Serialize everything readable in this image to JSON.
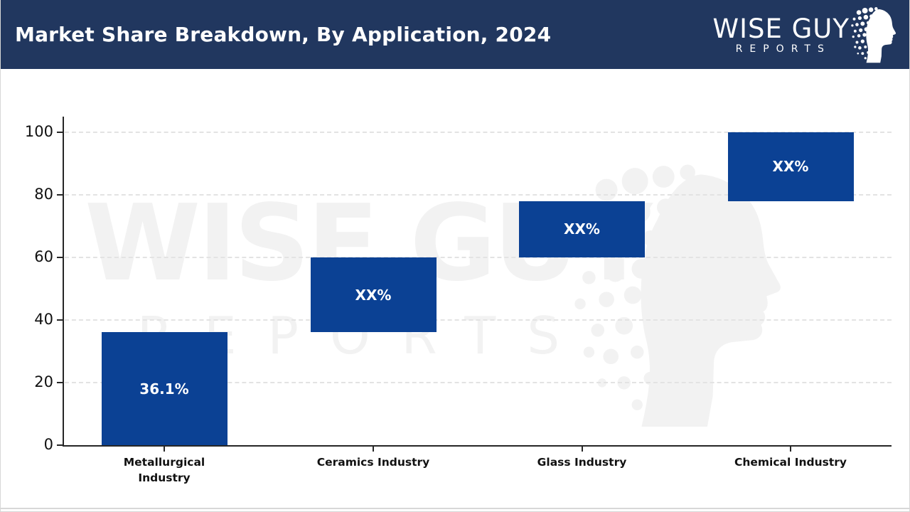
{
  "header": {
    "title": "Market Share Breakdown, By Application, 2024",
    "bg_color": "#21375f",
    "logo": {
      "line1": "WISE GUY",
      "line2": "REPORTS"
    }
  },
  "watermark": {
    "line1": "WISE GUY",
    "line2": "REPORTS"
  },
  "chart_data": {
    "type": "bar",
    "subtype": "waterfall",
    "title": "Market Share Breakdown, By Application, 2024",
    "categories": [
      "Metallurgical Industry",
      "Ceramics Industry",
      "Glass Industry",
      "Chemical Industry"
    ],
    "series": [
      {
        "name": "Market Share",
        "segments": [
          {
            "category": "Metallurgical Industry",
            "start": 0,
            "end": 36.1,
            "label": "36.1%"
          },
          {
            "category": "Ceramics Industry",
            "start": 36.1,
            "end": 60,
            "label": "XX%"
          },
          {
            "category": "Glass Industry",
            "start": 60,
            "end": 78,
            "label": "XX%"
          },
          {
            "category": "Chemical Industry",
            "start": 78,
            "end": 100,
            "label": "XX%"
          }
        ]
      }
    ],
    "xlabel": "",
    "ylabel": "",
    "ylim": [
      0,
      100
    ],
    "yticks": [
      0,
      20,
      40,
      60,
      80,
      100
    ],
    "grid": "horizontal-dashed",
    "legend": "none",
    "bar_color": "#0b4194",
    "bar_label_color": "#ffffff",
    "axis_color": "#262626",
    "gridline_color": "#e3e3e3"
  }
}
